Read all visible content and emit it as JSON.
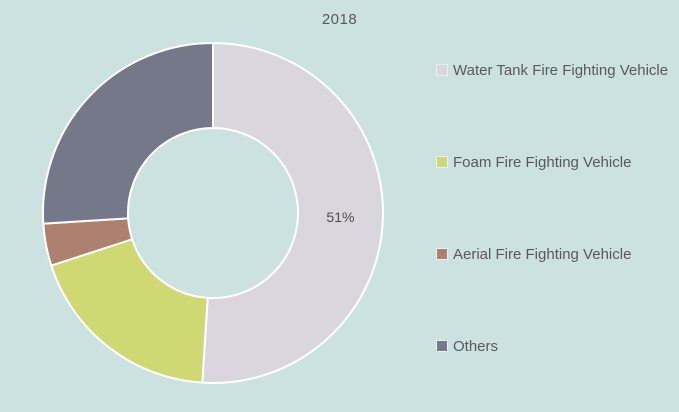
{
  "chart_data": {
    "type": "pie",
    "subtype": "donut",
    "title": "2018",
    "slices": [
      {
        "label": "Water Tank Fire Fighting Vehicle",
        "value": 51,
        "color": "#d9d7dd",
        "data_label": "51%"
      },
      {
        "label": "Foam Fire Fighting Vehicle",
        "value": 19,
        "color": "#cfd873",
        "data_label": ""
      },
      {
        "label": "Aerial Fire Fighting Vehicle",
        "value": 4,
        "color": "#ad8070",
        "data_label": ""
      },
      {
        "label": "Others",
        "value": 26,
        "color": "#757889",
        "data_label": ""
      }
    ],
    "start_angle_deg": 0,
    "direction": "clockwise",
    "inner_radius_ratio": 0.5,
    "legend_position": "right",
    "background_color": "#cbe2e1",
    "slice_border_color": "#ffffff",
    "text_color": "#595959"
  }
}
